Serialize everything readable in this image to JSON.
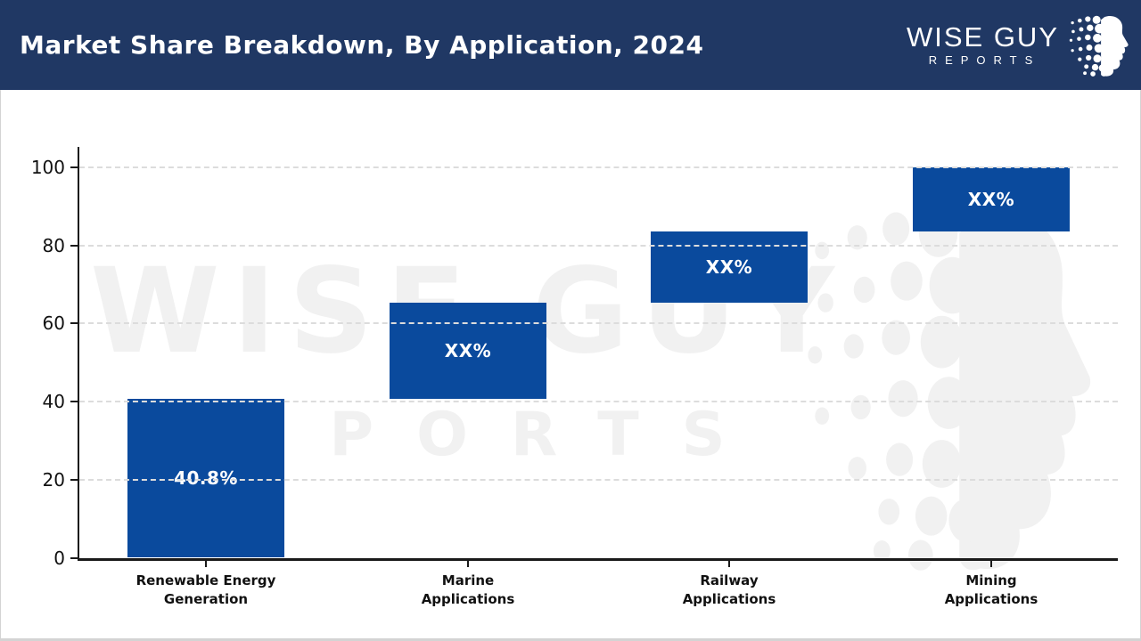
{
  "header": {
    "title": "Market Share Breakdown, By Application, 2024",
    "logo": {
      "line1": "WISE GUY",
      "line2": "REPORTS"
    }
  },
  "watermark": {
    "line1": "WISE GUY",
    "line2": "REPORTS"
  },
  "colors": {
    "header_bg": "#203864",
    "bar": "#0a4a9d",
    "grid": "#dcdcdc",
    "axis": "#1a1a1a",
    "watermark": "#f1f1f1",
    "value_label": "#ffffff",
    "tick_label": "#111111"
  },
  "chart_data": {
    "type": "bar",
    "subtype": "waterfall",
    "title": "Market Share Breakdown, By Application, 2024",
    "categories": [
      "Renewable Energy Generation",
      "Marine Applications",
      "Railway Applications",
      "Mining Applications"
    ],
    "category_lines": [
      [
        "Renewable Energy",
        "Generation"
      ],
      [
        "Marine",
        "Applications"
      ],
      [
        "Railway",
        "Applications"
      ],
      [
        "Mining",
        "Applications"
      ]
    ],
    "bars": [
      {
        "category": "Renewable Energy Generation",
        "from": 0,
        "to": 40.8,
        "label": "40.8%"
      },
      {
        "category": "Marine Applications",
        "from": 40.8,
        "to": 65.4,
        "label": "XX%"
      },
      {
        "category": "Railway Applications",
        "from": 65.4,
        "to": 83.6,
        "label": "XX%"
      },
      {
        "category": "Mining Applications",
        "from": 83.6,
        "to": 100,
        "label": "XX%"
      }
    ],
    "yticks": [
      0,
      20,
      40,
      60,
      80,
      100
    ],
    "ylim": [
      0,
      105
    ],
    "xlabel": "",
    "ylabel": "",
    "grid": "horizontal dashed, drawn above bars",
    "legend": null
  }
}
